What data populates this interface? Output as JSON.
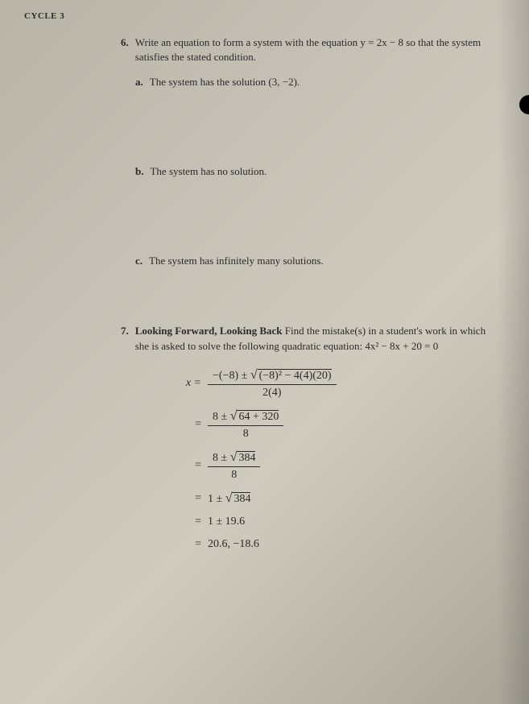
{
  "header": {
    "cycle": "CYCLE 3"
  },
  "problem6": {
    "number": "6.",
    "text_line1": "Write an equation to form a system with the equation y = 2x − 8 so that the system",
    "text_line2": "satisfies the stated condition.",
    "parts": {
      "a": {
        "label": "a.",
        "text": "The system has the solution (3, −2)."
      },
      "b": {
        "label": "b.",
        "text": "The system has no solution."
      },
      "c": {
        "label": "c.",
        "text": "The system has infinitely many solutions."
      }
    }
  },
  "problem7": {
    "number": "7.",
    "title": "Looking Forward, Looking Back",
    "text_line1": " Find the mistake(s) in a student's work in which",
    "text_line2": "she is asked to solve the following quadratic equation: 4x² − 8x + 20 = 0",
    "work": {
      "line1_prefix": "x =",
      "line1_num": "−(−8) ± √(−8)² − 4(4)(20)",
      "line1_den": "2(4)",
      "line2_prefix": "=",
      "line2_num": "8 ± √64 + 320",
      "line2_den": "8",
      "line3_prefix": "=",
      "line3_num": "8 ± √384",
      "line3_den": "8",
      "line4_prefix": "=",
      "line4_text": "1 ± √384",
      "line5_prefix": "=",
      "line5_text": "1 ± 19.6",
      "line6_prefix": "=",
      "line6_text": " 20.6, −18.6"
    }
  }
}
